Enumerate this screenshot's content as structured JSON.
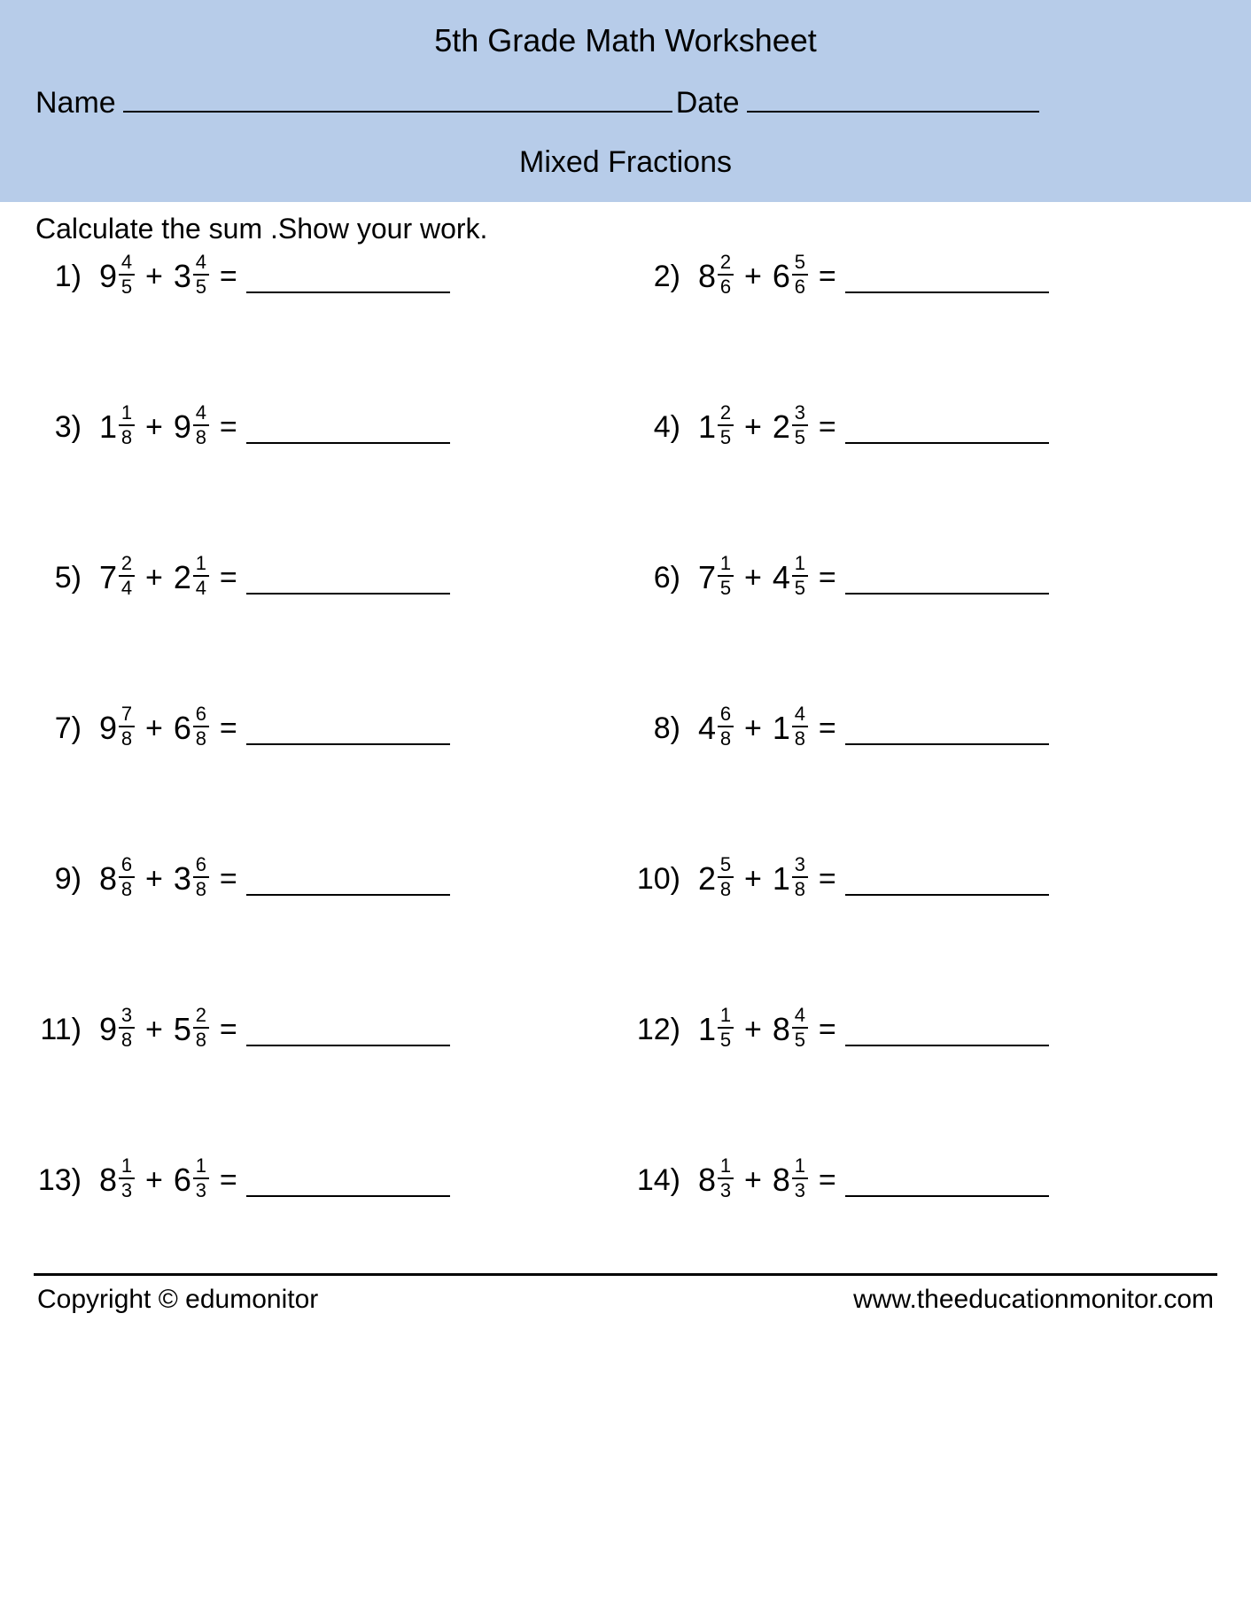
{
  "header": {
    "title": "5th Grade Math Worksheet",
    "name_label": "Name",
    "date_label": "Date",
    "subtitle": "Mixed Fractions",
    "header_bg": "#b7cce9"
  },
  "instructions": "Calculate the sum .Show your work.",
  "problems": [
    {
      "n": "1)",
      "a": {
        "w": "9",
        "num": "4",
        "den": "5"
      },
      "b": {
        "w": "3",
        "num": "4",
        "den": "5"
      }
    },
    {
      "n": "2)",
      "a": {
        "w": "8",
        "num": "2",
        "den": "6"
      },
      "b": {
        "w": "6",
        "num": "5",
        "den": "6"
      }
    },
    {
      "n": "3)",
      "a": {
        "w": "1",
        "num": "1",
        "den": "8"
      },
      "b": {
        "w": "9",
        "num": "4",
        "den": "8"
      }
    },
    {
      "n": "4)",
      "a": {
        "w": "1",
        "num": "2",
        "den": "5"
      },
      "b": {
        "w": "2",
        "num": "3",
        "den": "5"
      }
    },
    {
      "n": "5)",
      "a": {
        "w": "7",
        "num": "2",
        "den": "4"
      },
      "b": {
        "w": "2",
        "num": "1",
        "den": "4"
      }
    },
    {
      "n": "6)",
      "a": {
        "w": "7",
        "num": "1",
        "den": "5"
      },
      "b": {
        "w": "4",
        "num": "1",
        "den": "5"
      }
    },
    {
      "n": "7)",
      "a": {
        "w": "9",
        "num": "7",
        "den": "8"
      },
      "b": {
        "w": "6",
        "num": "6",
        "den": "8"
      }
    },
    {
      "n": "8)",
      "a": {
        "w": "4",
        "num": "6",
        "den": "8"
      },
      "b": {
        "w": "1",
        "num": "4",
        "den": "8"
      }
    },
    {
      "n": "9)",
      "a": {
        "w": "8",
        "num": "6",
        "den": "8"
      },
      "b": {
        "w": "3",
        "num": "6",
        "den": "8"
      }
    },
    {
      "n": "10)",
      "a": {
        "w": "2",
        "num": "5",
        "den": "8"
      },
      "b": {
        "w": "1",
        "num": "3",
        "den": "8"
      }
    },
    {
      "n": "11)",
      "a": {
        "w": "9",
        "num": "3",
        "den": "8"
      },
      "b": {
        "w": "5",
        "num": "2",
        "den": "8"
      }
    },
    {
      "n": "12)",
      "a": {
        "w": "1",
        "num": "1",
        "den": "5"
      },
      "b": {
        "w": "8",
        "num": "4",
        "den": "5"
      }
    },
    {
      "n": "13)",
      "a": {
        "w": "8",
        "num": "1",
        "den": "3"
      },
      "b": {
        "w": "6",
        "num": "1",
        "den": "3"
      }
    },
    {
      "n": "14)",
      "a": {
        "w": "8",
        "num": "1",
        "den": "3"
      },
      "b": {
        "w": "8",
        "num": "1",
        "den": "3"
      }
    }
  ],
  "operator": "+",
  "equals": "=",
  "footer": {
    "left": "Copyright © edumonitor",
    "right": "www.theeducationmonitor.com"
  }
}
